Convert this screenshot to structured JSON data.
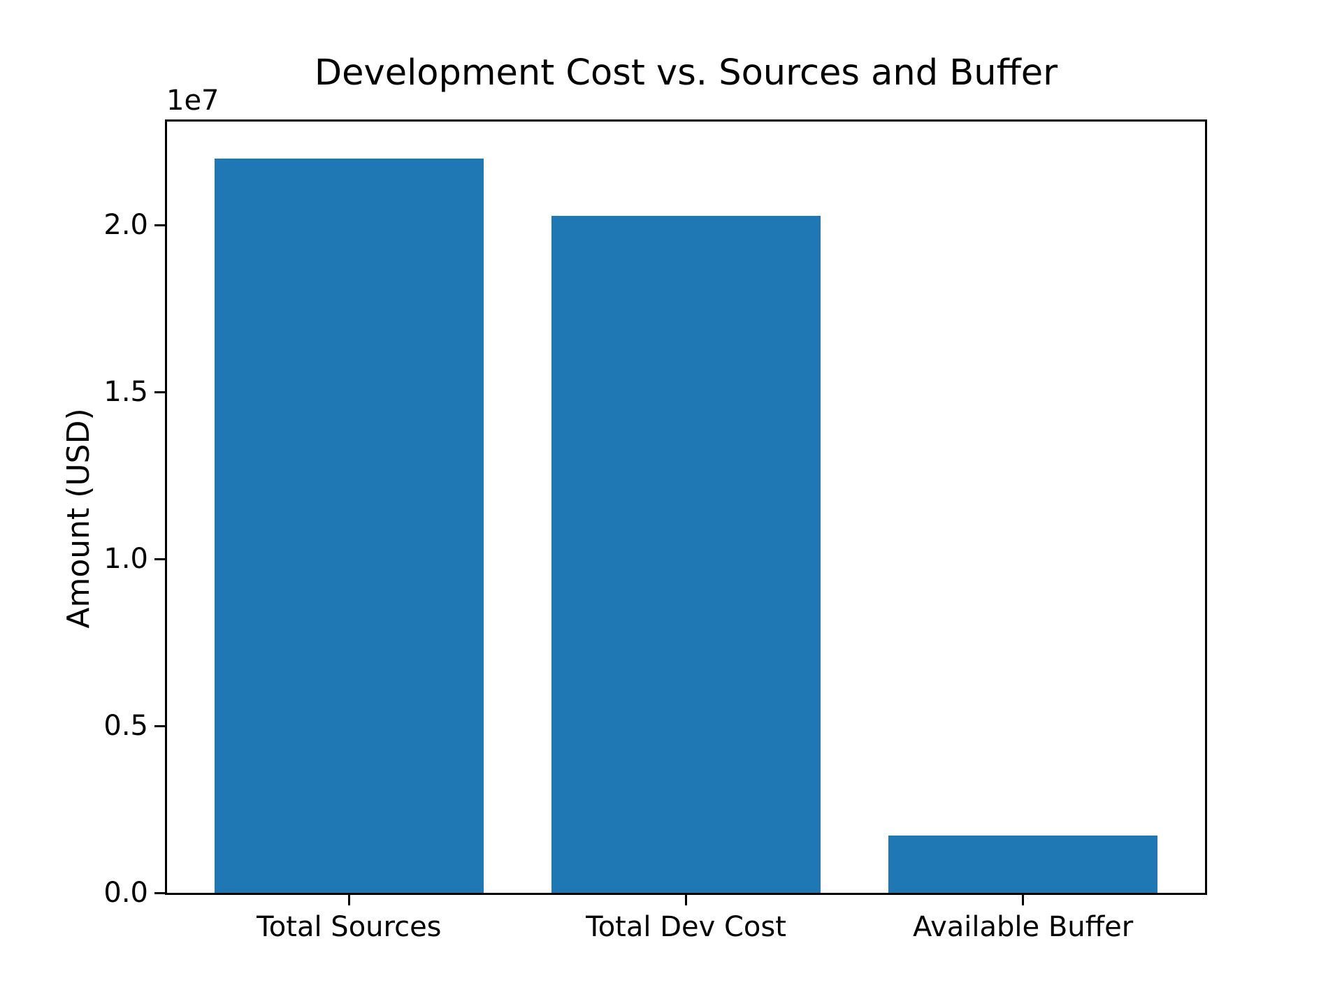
{
  "figure": {
    "title": "Development Cost vs. Sources and Buffer",
    "ylabel": "Amount (USD)",
    "y_offset_label": "1e7"
  },
  "chart_data": {
    "type": "bar",
    "title": "Development Cost vs. Sources and Buffer",
    "xlabel": "",
    "ylabel": "Amount (USD)",
    "categories": [
      "Total Sources",
      "Total Dev Cost",
      "Available Buffer"
    ],
    "values": [
      22000000,
      20280000,
      1720000
    ],
    "y_ticks": [
      0,
      5000000,
      10000000,
      15000000,
      20000000
    ],
    "y_tick_labels": [
      "0.0",
      "0.5",
      "1.0",
      "1.5",
      "2.0"
    ],
    "y_offset_label": "1e7",
    "ylim": [
      0,
      23100000
    ],
    "xlim": [
      -0.54,
      2.54
    ],
    "bar_positions": [
      0,
      1,
      2
    ],
    "bar_width_units": 0.8,
    "bar_color": "#1f77b4",
    "axis_color": "#000000",
    "background_color": "#ffffff",
    "grid": false,
    "legend": false
  }
}
